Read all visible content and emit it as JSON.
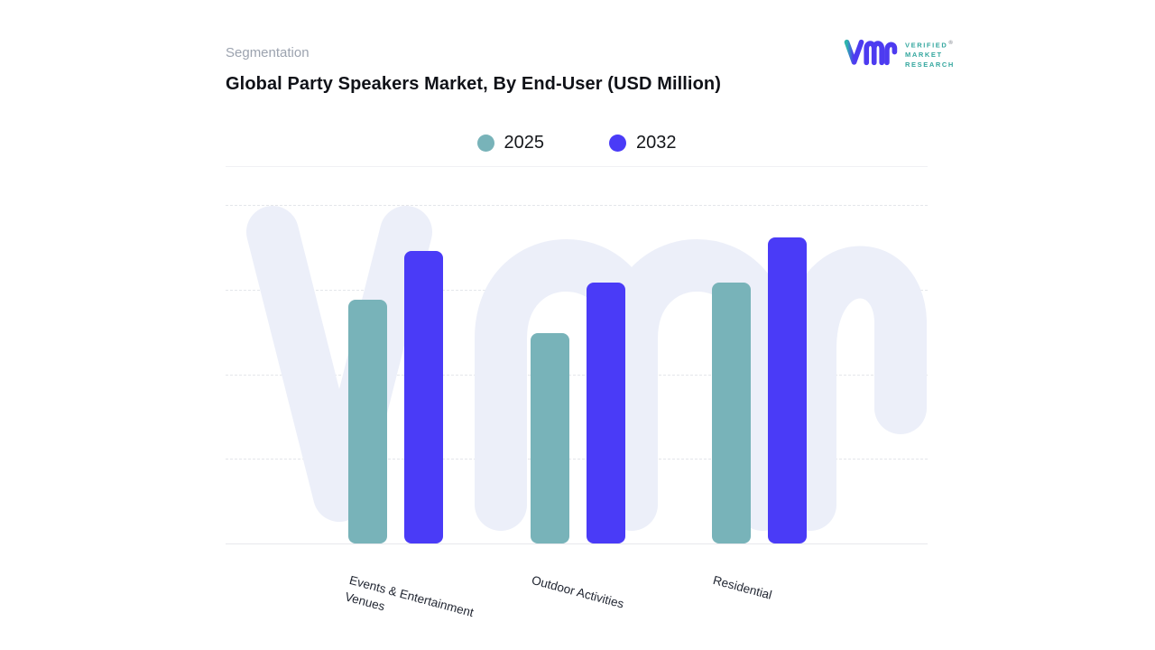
{
  "page": {
    "background": "#ffffff"
  },
  "header": {
    "eyebrow": "Segmentation",
    "title": "Global Party Speakers Market, By End-User (USD Million)"
  },
  "logo": {
    "monogram": "vmr",
    "lines": [
      "VERIFIED",
      "MARKET",
      "RESEARCH"
    ],
    "registered_mark": "®",
    "text_color": "#35A79F",
    "glyph_purple": "#4D3BF0",
    "glyph_teal": "#2EB5AC"
  },
  "chart_data": {
    "type": "bar",
    "title": "Global Party Speakers Market, By End-User (USD Million)",
    "categories": [
      "Events & Entertainment Venues",
      "Outdoor Activities",
      "Residential"
    ],
    "series": [
      {
        "name": "2025",
        "color": "#78B3B9",
        "values": [
          72,
          62,
          77
        ]
      },
      {
        "name": "2032",
        "color": "#4A3BF7",
        "values": [
          86.5,
          77,
          90.5
        ]
      }
    ],
    "xlabel": "",
    "ylabel": "",
    "ylim": [
      0,
      100
    ],
    "y_axis_labels_visible": false,
    "grid": "horizontal-dashed",
    "legend_position": "top-center",
    "watermark": "vmr"
  }
}
